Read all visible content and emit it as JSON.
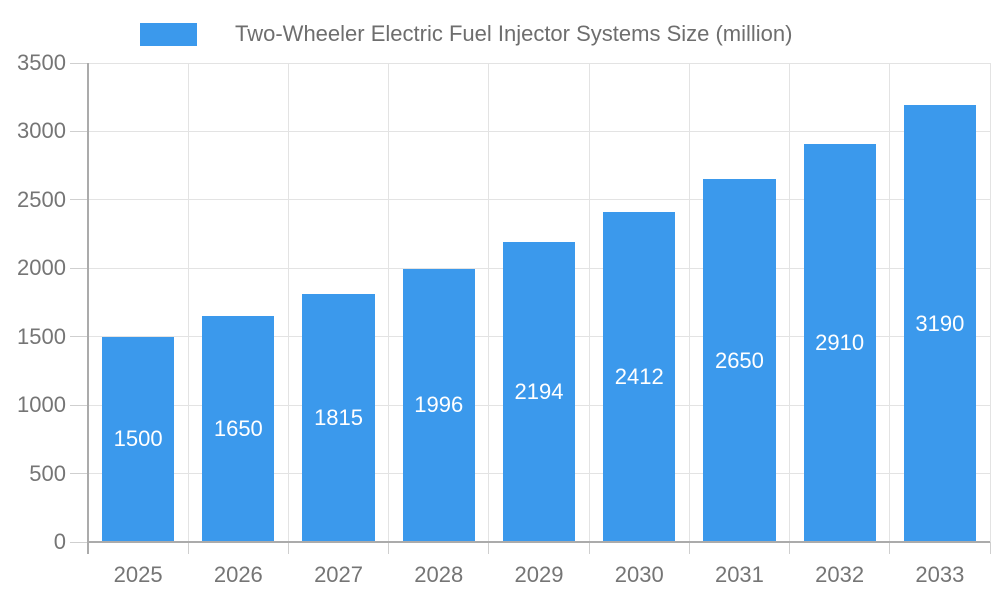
{
  "page": {
    "background": "#FFFFFF"
  },
  "chart_data": {
    "type": "bar",
    "title": "Two-Wheeler Electric Fuel Injector Systems Size (million)",
    "legend": [
      "Two-Wheeler Electric Fuel Injector Systems Size (million)"
    ],
    "legend_position": "top",
    "categories": [
      "2025",
      "2026",
      "2027",
      "2028",
      "2029",
      "2030",
      "2031",
      "2032",
      "2033"
    ],
    "series": [
      {
        "name": "Two-Wheeler Electric Fuel Injector Systems Size (million)",
        "values": [
          1500,
          1650,
          1815,
          1996,
          2194,
          2412,
          2650,
          2910,
          3190
        ]
      }
    ],
    "bar_value_labels": [
      "1500",
      "1650",
      "1815",
      "1996",
      "2194",
      "2412",
      "2650",
      "2910",
      "3190"
    ],
    "xlabel": "",
    "ylabel": "",
    "ylim": [
      0,
      3500
    ],
    "ytick_step": 500,
    "ytick_labels": [
      "0",
      "500",
      "1000",
      "1500",
      "2000",
      "2500",
      "3000",
      "3500"
    ],
    "grid": true,
    "colors": {
      "bar": "#3B99EC",
      "bar_label": "#FFFFFF",
      "grid": "#E3E3E3",
      "axis": "#ABABAB",
      "tick": "#CFCFCF",
      "text": "#757575",
      "legend_text": "#6E6E6E",
      "background": "#FFFFFF"
    }
  }
}
